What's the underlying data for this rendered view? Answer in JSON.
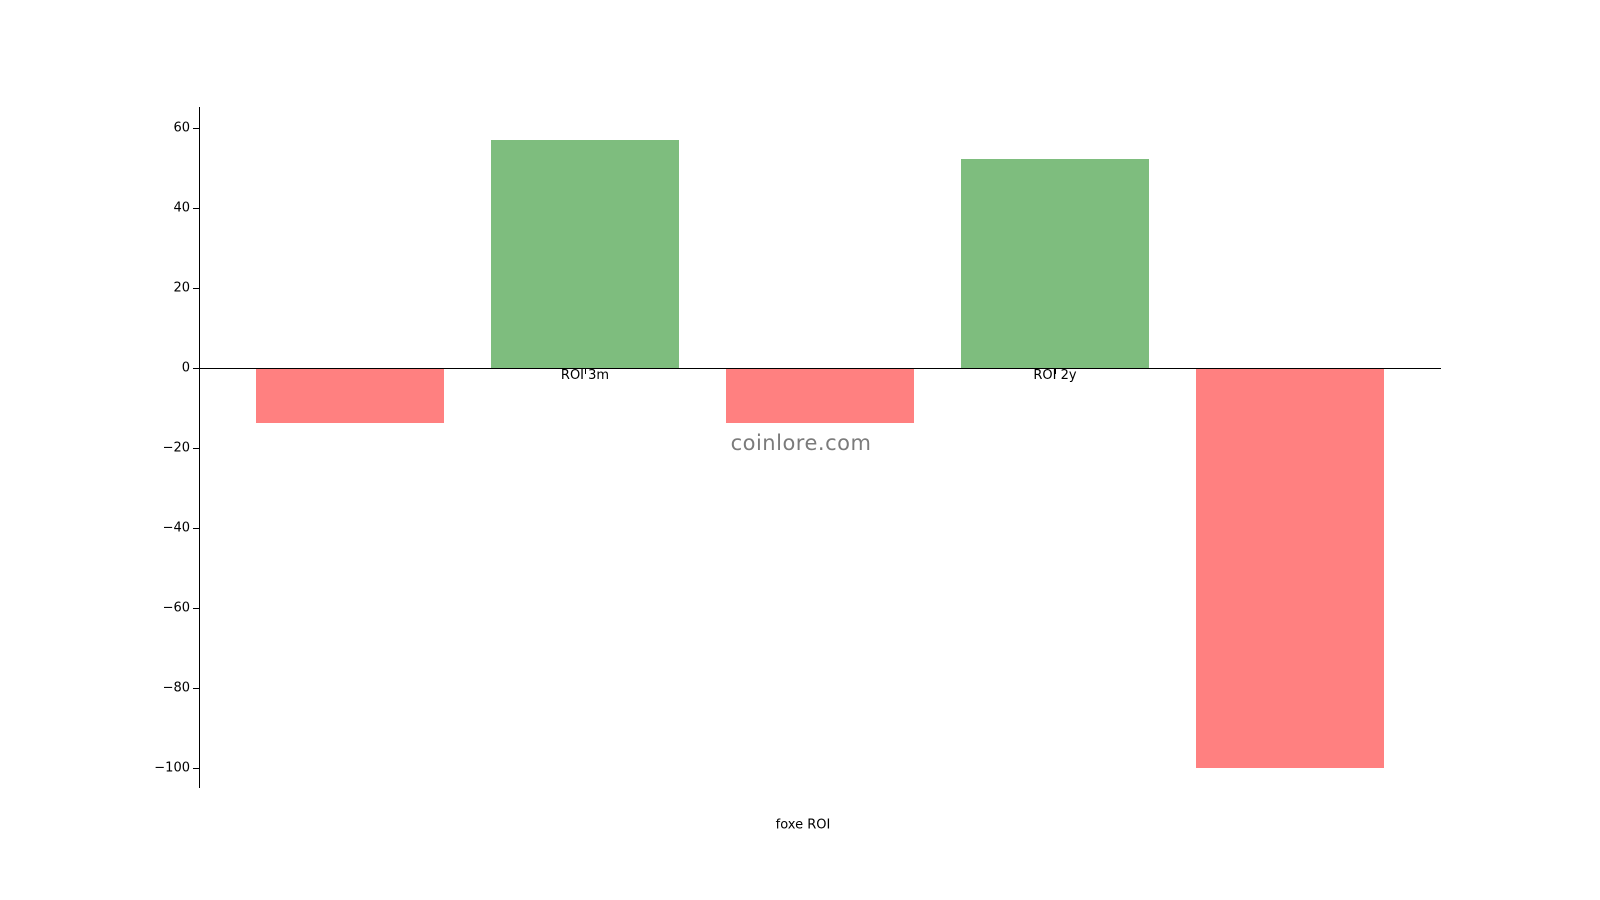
{
  "chart_data": {
    "type": "bar",
    "title": "",
    "xlabel": "foxe ROI",
    "ylabel": "",
    "categories": [
      "",
      "ROI 3m",
      "",
      "ROI 2y",
      ""
    ],
    "values": [
      -13.8,
      57,
      -13.8,
      52.2,
      -100
    ],
    "series": [
      {
        "name": "foxe ROI",
        "values": [
          -13.8,
          57,
          -13.8,
          52.2,
          -100
        ]
      }
    ],
    "visible_x_tick_labels": [
      "ROI 3m",
      "ROI 2y"
    ],
    "yticks": [
      60,
      40,
      20,
      0,
      -20,
      -40,
      -60,
      -80,
      -100
    ],
    "ytick_labels": [
      "60",
      "40",
      "20",
      "0",
      "−20",
      "−40",
      "−60",
      "−80",
      "−100"
    ],
    "ylim": [
      -110,
      65
    ],
    "grid": false,
    "legend": "none",
    "bar_color_positive": "#7ebd7e",
    "bar_color_negative": "#ff8080",
    "axis_color": "#000000",
    "watermark": "coinlore.com",
    "watermark_color": "#7b7b7b"
  }
}
